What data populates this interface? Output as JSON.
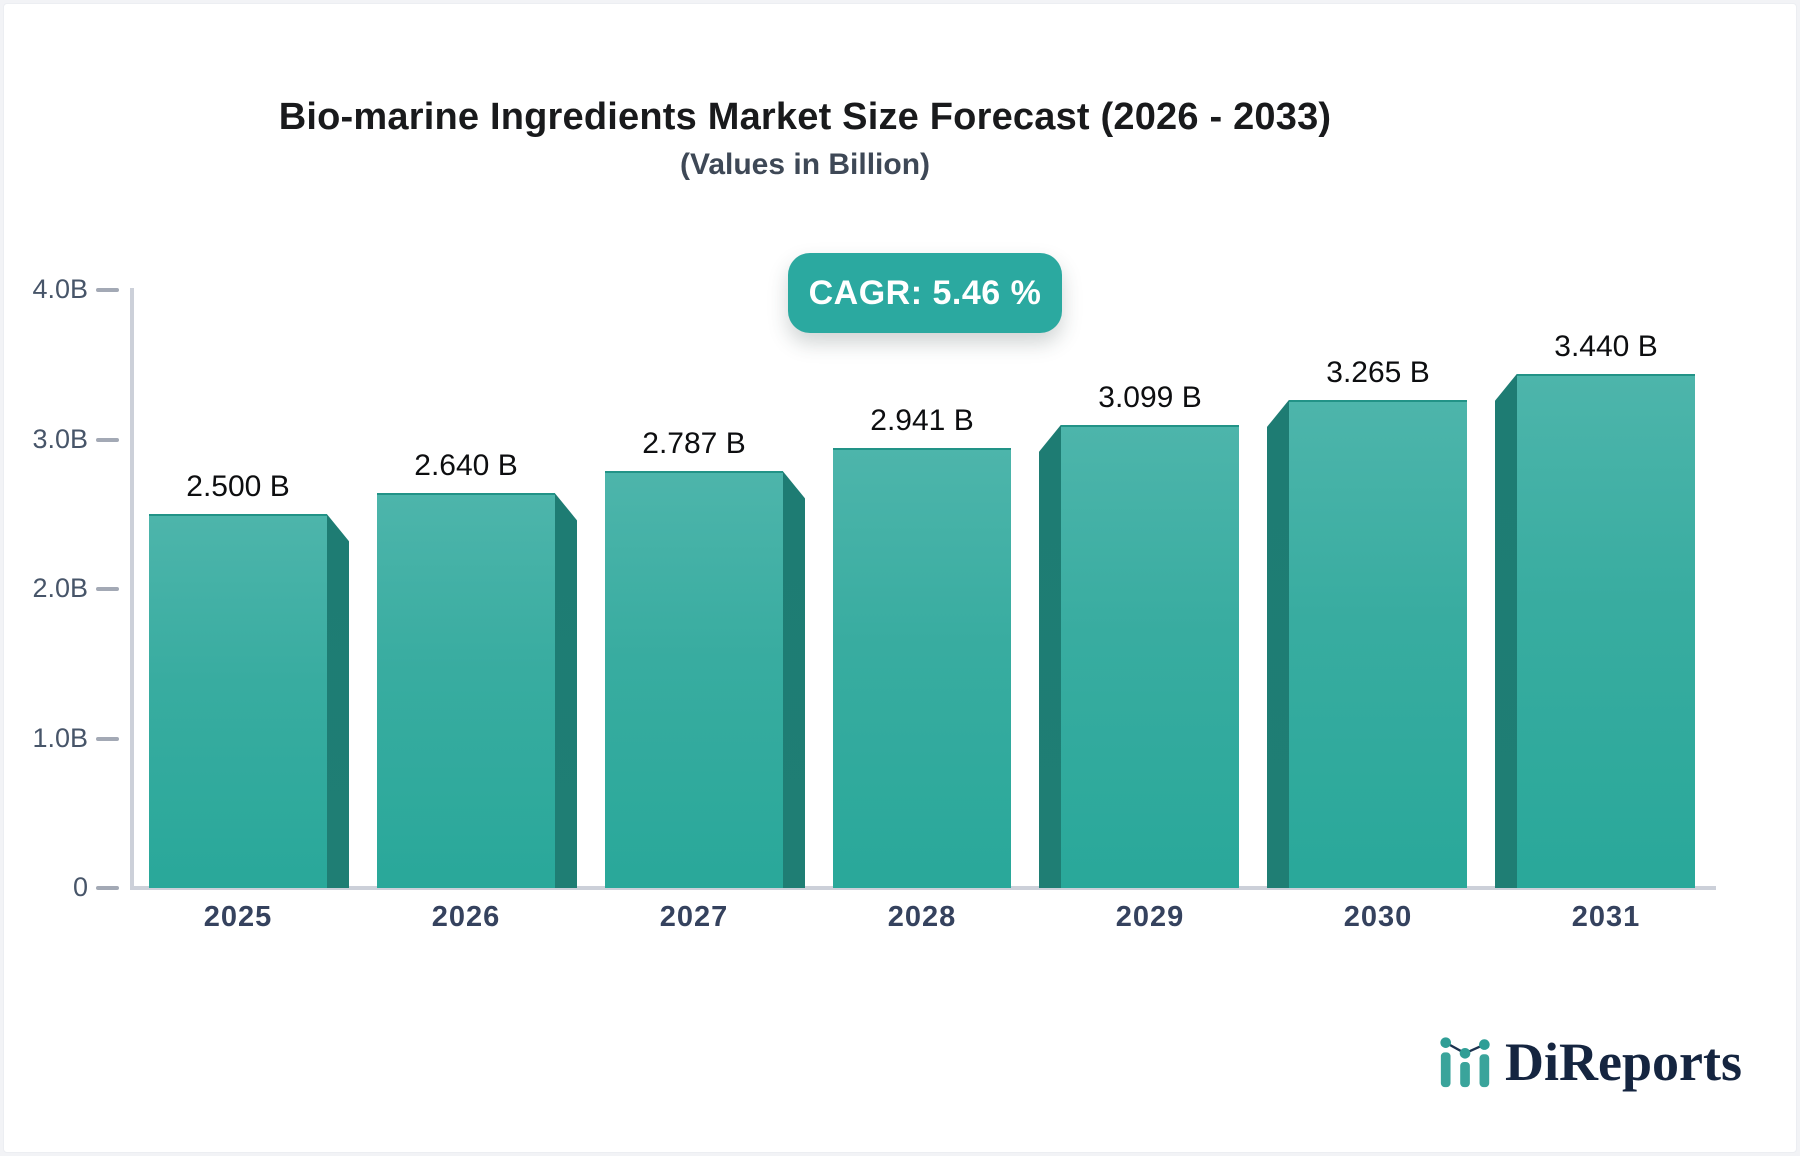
{
  "chart_data": {
    "type": "bar",
    "title": "Bio-marine Ingredients Market Size Forecast (2026 - 2033)",
    "subtitle": "(Values in Billion)",
    "cagr_label": "CAGR: 5.46 %",
    "categories": [
      "2025",
      "2026",
      "2027",
      "2028",
      "2029",
      "2030",
      "2031"
    ],
    "values": [
      2.5,
      2.64,
      2.787,
      2.941,
      3.099,
      3.265,
      3.44
    ],
    "value_labels": [
      "2.500 B",
      "2.640 B",
      "2.787 B",
      "2.941 B",
      "3.099 B",
      "3.265 B",
      "3.440 B"
    ],
    "xlabel": "",
    "ylabel": "",
    "ylim": [
      0,
      4.0
    ],
    "y_ticks": [
      {
        "label": "4.0B",
        "value": 4.0
      },
      {
        "label": "3.0B",
        "value": 3.0
      },
      {
        "label": "2.0B",
        "value": 2.0
      },
      {
        "label": "1.0B",
        "value": 1.0
      },
      {
        "label": "0",
        "value": 0.0
      }
    ],
    "grid": false,
    "legend": "none",
    "colors": {
      "bar_top": "#4db5ab",
      "bar_bottom": "#29a89a",
      "bar_side": "#1e7c73",
      "badge_bg": "#2ba9a0",
      "axis": "#ccd0d9",
      "tick_dash": "#a3a9b5",
      "y_label": "#475569",
      "x_label": "#35425e",
      "value_label": "#0d0e10",
      "title": "#191a1c",
      "subtitle": "#3e4856"
    }
  },
  "branding": {
    "logo_text": "DiReports",
    "logo_icon": "bar-chart-with-trend-dots-icon",
    "logo_color": "#152540",
    "logo_accent": "#2f9e96"
  }
}
